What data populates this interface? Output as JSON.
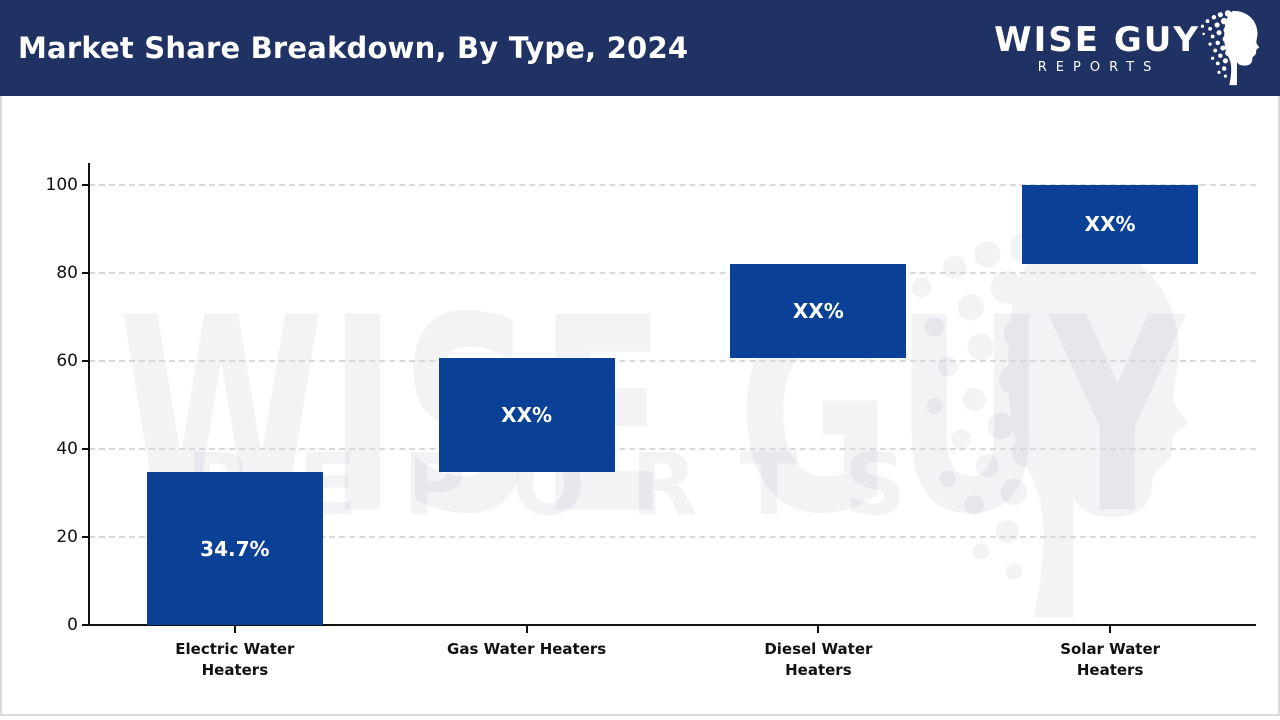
{
  "header": {
    "title": "Market Share Breakdown, By Type, 2024",
    "logo": {
      "line1": "WISE GUY",
      "line2": "REPORTS"
    }
  },
  "watermark": {
    "line1": "WISE GUY",
    "line2": "REPORTS"
  },
  "colors": {
    "header_bg": "#203263",
    "bar_fill": "#0a4196",
    "gridline": "#d8d8d8",
    "axis": "#111111",
    "bar_label_text": "#ffffff",
    "watermark_tint": "#24335f"
  },
  "chart_data": {
    "type": "bar",
    "subtype": "waterfall",
    "title": "Market Share Breakdown, By Type, 2024",
    "xlabel": "",
    "ylabel": "",
    "categories": [
      "Electric Water\nHeaters",
      "Gas Water Heaters",
      "Diesel Water\nHeaters",
      "Solar Water\nHeaters"
    ],
    "segments": [
      {
        "label": "34.7%",
        "start": 0,
        "end": 34.7
      },
      {
        "label": "XX%",
        "start": 34.7,
        "end": 60.6
      },
      {
        "label": "XX%",
        "start": 60.6,
        "end": 82.1
      },
      {
        "label": "XX%",
        "start": 82.1,
        "end": 100
      }
    ],
    "bar_labels": [
      "34.7%",
      "XX%",
      "XX%",
      "XX%"
    ],
    "yticks": [
      0,
      20,
      40,
      60,
      80,
      100
    ],
    "ylim": [
      0,
      105
    ],
    "grid": "dashed-horizontal",
    "legend": "none"
  }
}
